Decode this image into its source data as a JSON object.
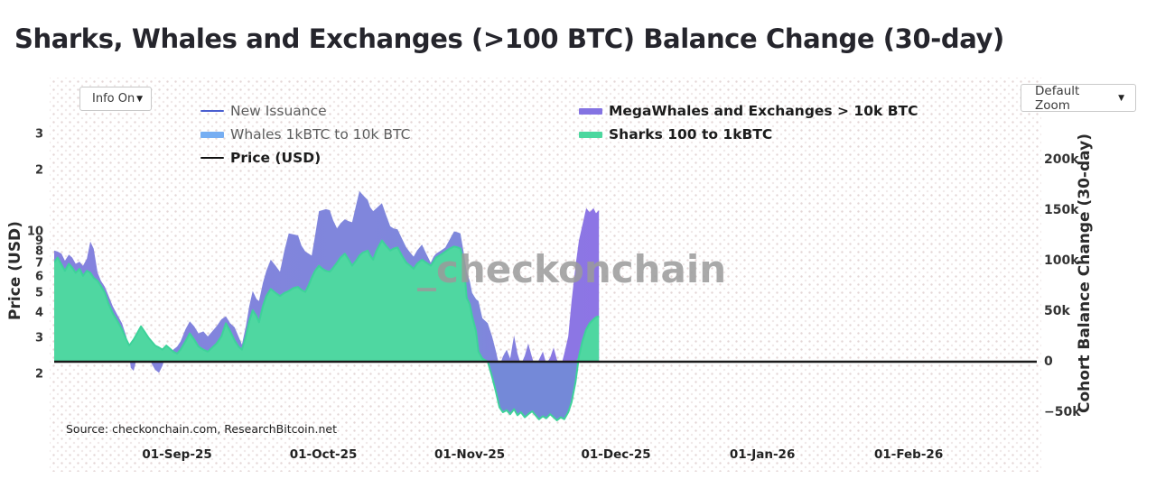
{
  "title": "Sharks, Whales and Exchanges (>100 BTC) Balance Change (30-day)",
  "controls": {
    "info_toggle": {
      "label": "Info On",
      "arrow": "▼"
    },
    "zoom_select": {
      "label": "Default Zoom",
      "arrow": "▼"
    }
  },
  "legend": {
    "columns": [
      {
        "items": [
          {
            "label": "New Issuance",
            "color": "#4a5fd0",
            "shape": "thin",
            "muted": true
          },
          {
            "label": "Whales 1kBTC to 10k BTC",
            "color": "#77aef2",
            "shape": "thick",
            "muted": true
          },
          {
            "label": "Price (USD)",
            "color": "#111111",
            "shape": "thin",
            "muted": false
          }
        ]
      },
      {
        "items": [
          {
            "label": "MegaWhales and Exchanges > 10k BTC",
            "color": "#8473e2",
            "shape": "thick",
            "muted": false
          },
          {
            "label": "Sharks 100 to 1kBTC",
            "color": "#4cd79e",
            "shape": "thick",
            "muted": false
          }
        ]
      }
    ]
  },
  "watermark": "_checkonchain",
  "source": "Source: checkonchain.com, ResearchBitcoin.net",
  "axes": {
    "left": {
      "title": "Price (USD)",
      "scale": "log",
      "ticks": [
        {
          "label": "3",
          "price_k": 300
        },
        {
          "label": "2",
          "price_k": 200
        },
        {
          "label": "10",
          "price_k": 100
        },
        {
          "label": "9",
          "price_k": 90
        },
        {
          "label": "8",
          "price_k": 80
        },
        {
          "label": "7",
          "price_k": 70
        },
        {
          "label": "6",
          "price_k": 60
        },
        {
          "label": "5",
          "price_k": 50
        },
        {
          "label": "4",
          "price_k": 40
        },
        {
          "label": "3",
          "price_k": 30
        },
        {
          "label": "2",
          "price_k": 20
        }
      ]
    },
    "right": {
      "title": "Cohort Balance Change (30-day)",
      "ticks": [
        {
          "label": "200k",
          "value_k": 200
        },
        {
          "label": "150k",
          "value_k": 150
        },
        {
          "label": "100k",
          "value_k": 100
        },
        {
          "label": "50k",
          "value_k": 50
        },
        {
          "label": "0",
          "value_k": 0
        },
        {
          "label": "−50k",
          "value_k": -50
        }
      ]
    },
    "x": {
      "ticks": [
        {
          "label": "01-Sep-25",
          "day": 25.2
        },
        {
          "label": "01-Oct-25",
          "day": 55.2
        },
        {
          "label": "01-Nov-25",
          "day": 85.2
        },
        {
          "label": "01-Dec-25",
          "day": 115.2
        },
        {
          "label": "01-Jan-26",
          "day": 145.2
        },
        {
          "label": "01-Feb-26",
          "day": 175.2
        }
      ]
    }
  },
  "chart_data": {
    "type": "area",
    "title": "Sharks, Whales and Exchanges (>100 BTC) Balance Change (30-day)",
    "x_unit": "days since 07-Aug-2025 (first plotted point)",
    "y_unit": "BTC balance change over 30 days, thousands of BTC (right axis)",
    "xlim_days": [
      0,
      203.7
    ],
    "ylim_right_k": [
      -72,
      236
    ],
    "left_axis_note": "log price axis, 20k to 300k USD",
    "legend_position": "top",
    "grid": "off",
    "series_meta": [
      {
        "name": "Sharks 100 to 1kBTC",
        "fill": "#4fd7a1",
        "stroke": "#3ed29a"
      },
      {
        "name": "MegaWhales and Exchanges > 10k BTC",
        "fill_main": "#7e88db",
        "fill_late": "#8d75e5",
        "neg_overlap_fill": "#7489d8"
      }
    ],
    "points_format": [
      "day",
      "sharks_kBTC",
      "megawhales_kBTC"
    ],
    "points": [
      [
        0,
        98,
        110
      ],
      [
        0.7,
        103,
        109
      ],
      [
        1.5,
        96,
        107
      ],
      [
        2.2,
        90,
        100
      ],
      [
        3,
        97,
        106
      ],
      [
        3.7,
        93,
        103
      ],
      [
        4.4,
        88,
        97
      ],
      [
        5.2,
        92,
        99
      ],
      [
        5.9,
        85,
        95
      ],
      [
        6.7,
        90,
        102
      ],
      [
        7.4,
        88,
        119
      ],
      [
        8.1,
        83,
        112
      ],
      [
        8.9,
        80,
        88
      ],
      [
        9.6,
        75,
        80
      ],
      [
        10.4,
        68,
        74
      ],
      [
        11.1,
        58,
        66
      ],
      [
        12,
        48,
        55
      ],
      [
        13,
        40,
        46
      ],
      [
        13.9,
        32,
        38
      ],
      [
        14.8,
        22,
        25
      ],
      [
        15.4,
        16,
        6
      ],
      [
        15.7,
        18,
        -6
      ],
      [
        16.3,
        22,
        -9
      ],
      [
        17,
        28,
        5
      ],
      [
        17.8,
        35,
        30
      ],
      [
        18.5,
        30,
        20
      ],
      [
        19.3,
        24,
        5
      ],
      [
        20,
        20,
        -2
      ],
      [
        20.7,
        16,
        -8
      ],
      [
        21.5,
        14,
        -11
      ],
      [
        22.2,
        12,
        -4
      ],
      [
        23,
        16,
        8
      ],
      [
        23.7,
        13,
        4
      ],
      [
        24.4,
        10,
        12
      ],
      [
        25.2,
        8,
        15
      ],
      [
        25.9,
        12,
        20
      ],
      [
        26.9,
        20,
        32
      ],
      [
        27.8,
        28,
        40
      ],
      [
        28.7,
        22,
        35
      ],
      [
        29.6,
        15,
        28
      ],
      [
        30.6,
        12,
        30
      ],
      [
        31.5,
        10,
        25
      ],
      [
        32.4,
        14,
        30
      ],
      [
        33.3,
        18,
        35
      ],
      [
        34.3,
        25,
        42
      ],
      [
        35.2,
        38,
        45
      ],
      [
        36.1,
        30,
        38
      ],
      [
        37,
        21,
        34
      ],
      [
        37.8,
        15,
        25
      ],
      [
        38.5,
        12,
        17
      ],
      [
        39.3,
        25,
        35
      ],
      [
        40,
        40,
        55
      ],
      [
        40.7,
        51,
        70
      ],
      [
        41.5,
        45,
        62
      ],
      [
        42,
        39,
        60
      ],
      [
        42.8,
        55,
        78
      ],
      [
        43.5,
        65,
        90
      ],
      [
        44.4,
        72,
        101
      ],
      [
        45.4,
        68,
        95
      ],
      [
        46.3,
        65,
        89
      ],
      [
        47.2,
        68,
        110
      ],
      [
        48.1,
        70,
        127
      ],
      [
        49.1,
        73,
        126
      ],
      [
        50,
        74,
        125
      ],
      [
        50.7,
        71,
        115
      ],
      [
        51.5,
        69,
        109
      ],
      [
        52.2,
        76,
        107
      ],
      [
        52.8,
        83,
        105
      ],
      [
        53.5,
        90,
        125
      ],
      [
        54.3,
        95,
        149
      ],
      [
        55,
        92,
        150
      ],
      [
        55.7,
        90,
        151
      ],
      [
        56.5,
        89,
        150
      ],
      [
        57.2,
        93,
        140
      ],
      [
        58,
        98,
        132
      ],
      [
        58.7,
        103,
        137
      ],
      [
        59.6,
        107,
        141
      ],
      [
        60.4,
        101,
        139
      ],
      [
        61.1,
        95,
        138
      ],
      [
        61.9,
        100,
        155
      ],
      [
        62.6,
        105,
        169
      ],
      [
        63.3,
        108,
        165
      ],
      [
        64.3,
        110,
        160
      ],
      [
        64.8,
        105,
        153
      ],
      [
        65.4,
        101,
        149
      ],
      [
        66.1,
        110,
        152
      ],
      [
        67.2,
        120,
        157
      ],
      [
        68,
        115,
        146
      ],
      [
        68.9,
        110,
        134
      ],
      [
        69.6,
        112,
        132
      ],
      [
        70.4,
        113,
        131
      ],
      [
        71.3,
        105,
        122
      ],
      [
        72.2,
        98,
        113
      ],
      [
        73,
        95,
        108
      ],
      [
        73.7,
        92,
        104
      ],
      [
        74.4,
        97,
        110
      ],
      [
        75.4,
        101,
        116
      ],
      [
        76.3,
        98,
        107
      ],
      [
        77.2,
        95,
        98
      ],
      [
        77.8,
        99,
        104
      ],
      [
        78.3,
        103,
        107
      ],
      [
        79.3,
        106,
        110
      ],
      [
        80.2,
        109,
        113
      ],
      [
        81.1,
        112,
        121
      ],
      [
        82,
        114,
        129
      ],
      [
        82.8,
        113,
        128
      ],
      [
        83.3,
        112,
        127
      ],
      [
        83.9,
        100,
        110
      ],
      [
        84.6,
        63,
        89
      ],
      [
        85.2,
        57,
        80
      ],
      [
        85.7,
        45,
        68
      ],
      [
        86.5,
        30,
        62
      ],
      [
        87,
        10,
        60
      ],
      [
        87.8,
        3,
        43
      ],
      [
        88.9,
        0,
        38
      ],
      [
        89.8,
        -15,
        25
      ],
      [
        90.6,
        -30,
        10
      ],
      [
        91.3,
        -45,
        -5
      ],
      [
        92,
        -50,
        5
      ],
      [
        92.8,
        -48,
        12
      ],
      [
        93.5,
        -52,
        3
      ],
      [
        94.3,
        -47,
        26
      ],
      [
        95,
        -53,
        8
      ],
      [
        95.7,
        -50,
        -3
      ],
      [
        96.5,
        -55,
        6
      ],
      [
        97.2,
        -52,
        18
      ],
      [
        98,
        -49,
        4
      ],
      [
        98.7,
        -53,
        -6
      ],
      [
        99.4,
        -57,
        2
      ],
      [
        100.2,
        -54,
        10
      ],
      [
        100.9,
        -56,
        -2
      ],
      [
        101.7,
        -52,
        4
      ],
      [
        102.4,
        -55,
        14
      ],
      [
        103.1,
        -58,
        2
      ],
      [
        103.9,
        -55,
        -5
      ],
      [
        104.6,
        -57,
        8
      ],
      [
        105.4,
        -50,
        25
      ],
      [
        106.1,
        -40,
        60
      ],
      [
        106.9,
        -20,
        95
      ],
      [
        107.6,
        5,
        120
      ],
      [
        108.3,
        20,
        135
      ],
      [
        109.1,
        32,
        152
      ],
      [
        109.8,
        38,
        148
      ],
      [
        110.6,
        42,
        152
      ],
      [
        111.1,
        44,
        147
      ],
      [
        111.7,
        45,
        150
      ]
    ],
    "zero_line_color": "#1a1a1a"
  }
}
